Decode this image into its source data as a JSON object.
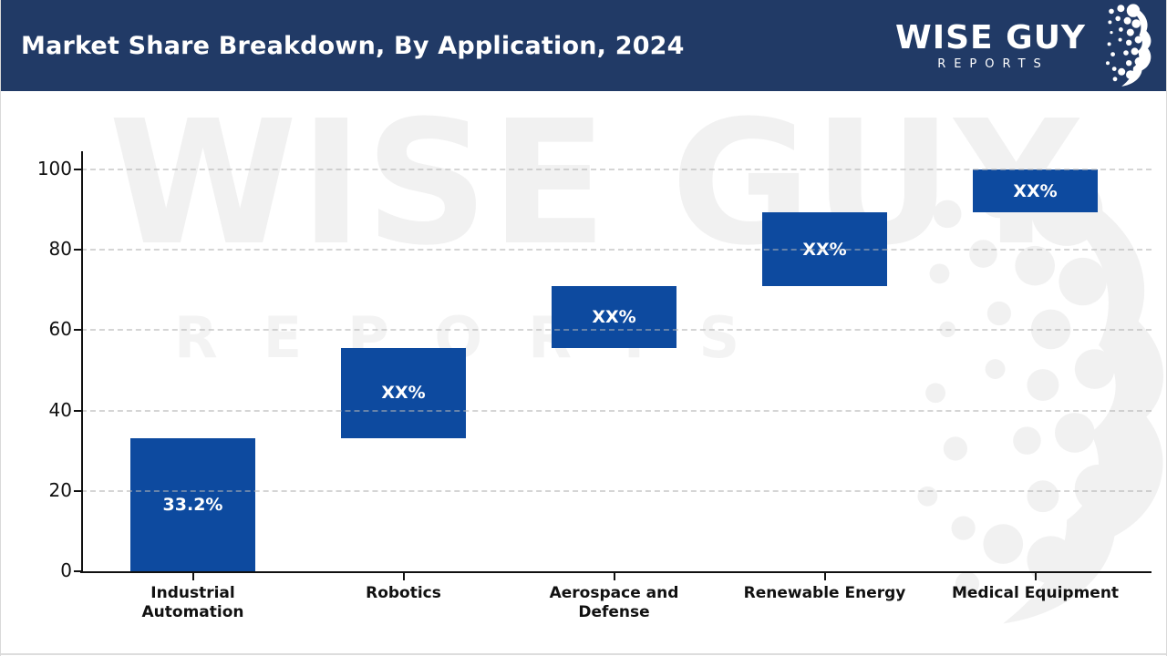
{
  "header": {
    "title": "Market Share Breakdown, By Application, 2024",
    "brand": {
      "wordmark": "WISE GUY",
      "subtitle": "REPORTS"
    }
  },
  "watermark": {
    "line1": "WISE GUY",
    "line2": "REPORTS"
  },
  "chart_data": {
    "type": "bar",
    "variant": "waterfall",
    "title": "Market Share Breakdown, By Application, 2024",
    "categories": [
      "Industrial Automation",
      "Robotics",
      "Aerospace and Defense",
      "Renewable Energy",
      "Medical Equipment"
    ],
    "segments": [
      {
        "category": "Industrial Automation",
        "start": 0,
        "end": 33.2,
        "label": "33.2%"
      },
      {
        "category": "Robotics",
        "start": 33.2,
        "end": 55.5,
        "label": "XX%"
      },
      {
        "category": "Aerospace and Defense",
        "start": 55.5,
        "end": 71.0,
        "label": "XX%"
      },
      {
        "category": "Renewable Energy",
        "start": 71.0,
        "end": 89.3,
        "label": "XX%"
      },
      {
        "category": "Medical Equipment",
        "start": 89.3,
        "end": 100.0,
        "label": "XX%"
      }
    ],
    "ylim": [
      0,
      100
    ],
    "yticks": [
      0,
      20,
      40,
      60,
      80,
      100
    ],
    "grid": {
      "axis": "y",
      "style": "dashed"
    },
    "legend": "none",
    "bar_color": "#0d4a9f",
    "bar_label_color": "#ffffff"
  },
  "colors": {
    "header_bg": "#213a66",
    "axis": "#111111",
    "grid": "#b2b2b2",
    "watermark": "#f1f1f1"
  }
}
